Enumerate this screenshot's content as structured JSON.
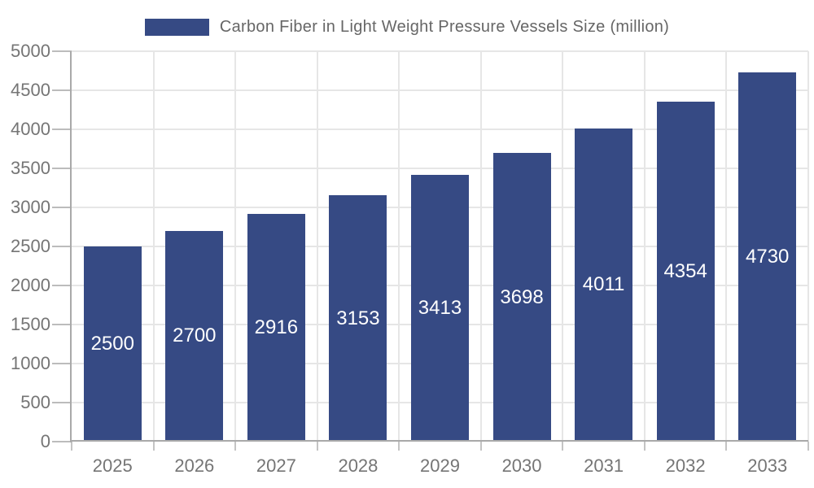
{
  "legend": {
    "label": "Carbon Fiber in Light Weight Pressure Vessels Size (million)"
  },
  "chart_data": {
    "type": "bar",
    "title": "Carbon Fiber in Light Weight Pressure Vessels Size (million)",
    "categories": [
      "2025",
      "2026",
      "2027",
      "2028",
      "2029",
      "2030",
      "2031",
      "2032",
      "2033"
    ],
    "series": [
      {
        "name": "Carbon Fiber in Light Weight Pressure Vessels Size (million)",
        "values": [
          2500,
          2700,
          2916,
          3153,
          3413,
          3698,
          4011,
          4354,
          4730
        ]
      }
    ],
    "value_labels_shown": true,
    "xlabel": "",
    "ylabel": "",
    "ylim": [
      0,
      5000
    ],
    "ytick_step": 500,
    "yticks": [
      0,
      500,
      1000,
      1500,
      2000,
      2500,
      3000,
      3500,
      4000,
      4500,
      5000
    ],
    "grid": true,
    "legend_position": "top-center",
    "colors": {
      "bar": "#364a84",
      "value_label": "#ffffff",
      "grid": "#e6e6e6",
      "axis_line": "#a9a9a9",
      "tick": "#bcbcbc",
      "axis_text": "#757575",
      "title_text": "#666666",
      "background": "#ffffff"
    }
  }
}
